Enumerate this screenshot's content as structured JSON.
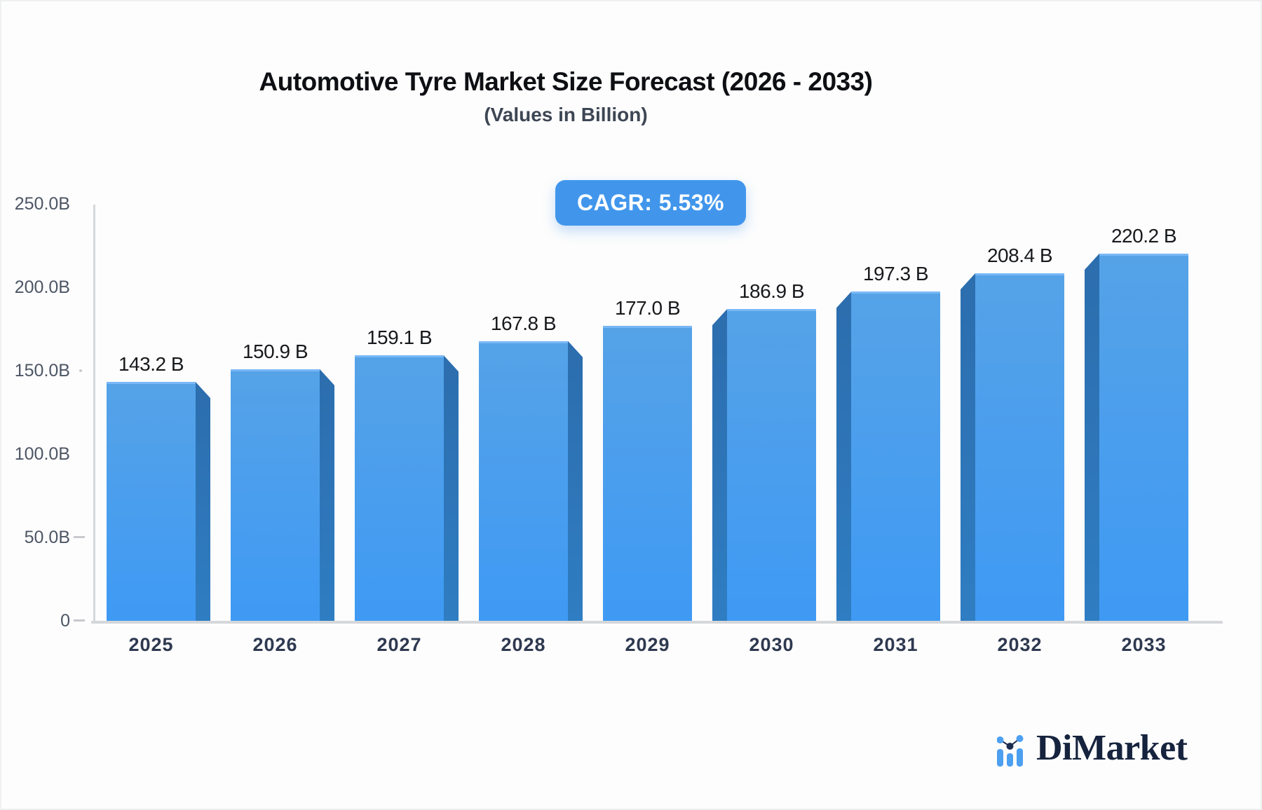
{
  "header": {
    "title": "Automotive Tyre Market Size Forecast (2026 - 2033)",
    "subtitle": "(Values in Billion)"
  },
  "badge": {
    "label": "CAGR: 5.53%"
  },
  "chart_data": {
    "type": "bar",
    "title": "Automotive Tyre Market Size Forecast (2026 - 2033)",
    "subtitle": "(Values in Billion)",
    "unit": "Billion",
    "cagr": "5.53%",
    "categories": [
      "2025",
      "2026",
      "2027",
      "2028",
      "2029",
      "2030",
      "2031",
      "2032",
      "2033"
    ],
    "values": [
      143.2,
      150.9,
      159.1,
      167.8,
      177.0,
      186.9,
      197.3,
      208.4,
      220.2
    ],
    "bar_labels": [
      "143.2 B",
      "150.9 B",
      "159.1 B",
      "167.8 B",
      "177.0 B",
      "186.9 B",
      "197.3 B",
      "208.4 B",
      "220.2 B"
    ],
    "xlabel": "",
    "ylabel": "",
    "ylim": [
      0,
      250
    ],
    "y_ticks": [
      {
        "value": 250,
        "label": "250.0B"
      },
      {
        "value": 200,
        "label": "200.0B"
      },
      {
        "value": 150,
        "label": "150.0B"
      },
      {
        "value": 100,
        "label": "100.0B"
      },
      {
        "value": 50,
        "label": "50.0B"
      },
      {
        "value": 0,
        "label": "0"
      }
    ],
    "grid": false,
    "legend": false,
    "style": "3d-perspective-columns",
    "colors": {
      "bar_face_top": "#55a2e7",
      "bar_face_bottom": "#3f9af4",
      "bar_side_top": "#2c6dad",
      "bar_side_bottom": "#2f7dc2",
      "badge_bg": "#4196ec",
      "axis_line": "#d5d7da",
      "logo_blue": "#4d9ff0",
      "logo_navy": "#1d2b4f"
    }
  },
  "logo": {
    "text": "DiMarket"
  }
}
